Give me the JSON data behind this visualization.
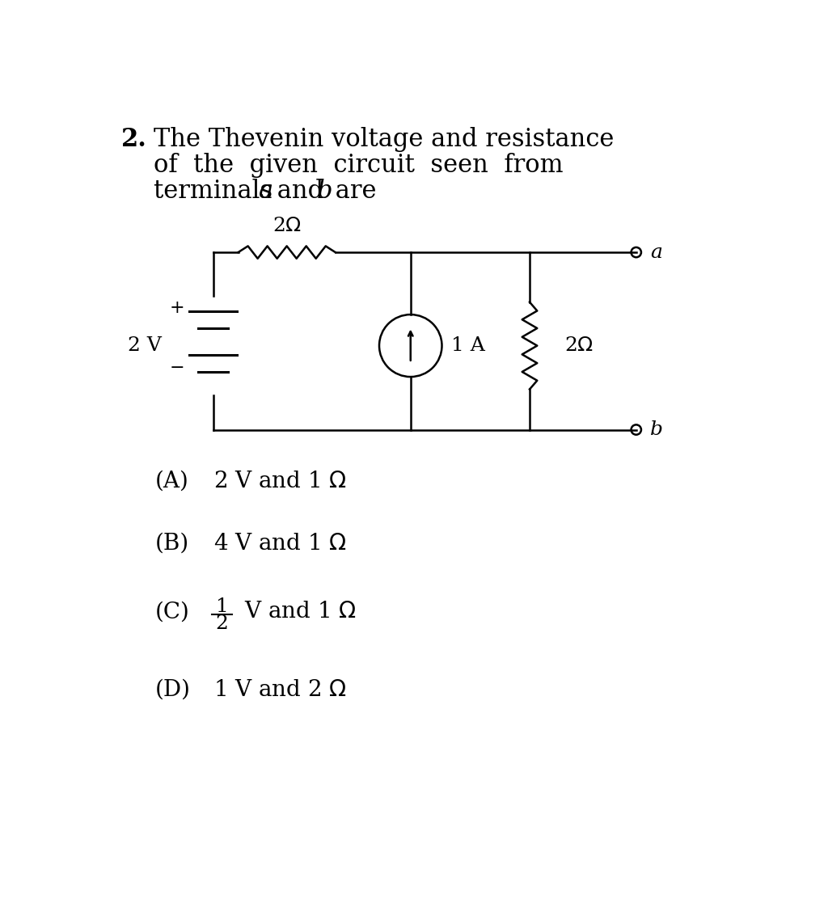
{
  "bg_color": "#f5f5f0",
  "text_color": "#000000",
  "title_line1": "2.  The Thevenin voltage and resistance",
  "title_line2": "    of  the  given  circuit  seen  from",
  "title_line3_pre": "    terminals ",
  "title_line3_a": "a",
  "title_line3_mid": " and ",
  "title_line3_b": "b",
  "title_line3_post": " are",
  "circuit": {
    "battery_label": "2 V",
    "r1_label": "2Ω",
    "cs_label": "1 A",
    "r2_label": "2Ω",
    "term_a": "a",
    "term_b": "b"
  },
  "options": [
    {
      "label": "(A)",
      "text": "2 V and 1 Ω",
      "is_fraction": false
    },
    {
      "label": "(B)",
      "text": "4 V and 1 Ω",
      "is_fraction": false
    },
    {
      "label": "(C)",
      "num": "1",
      "den": "2",
      "rest": "V and 1 Ω",
      "is_fraction": true
    },
    {
      "label": "(D)",
      "text": "1 V and 2 Ω",
      "is_fraction": false
    }
  ]
}
